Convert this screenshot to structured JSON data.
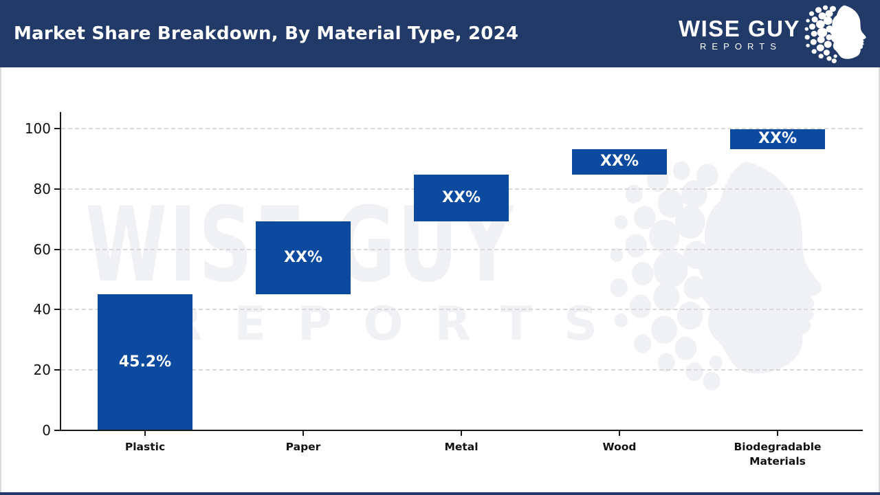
{
  "header": {
    "bg": "#223a67",
    "title": "Market Share Breakdown, By Material Type, 2024",
    "logo": {
      "line1": "WISE GUY",
      "line2": "REPORTS"
    }
  },
  "watermark": {
    "line1": "WISE GUY",
    "line2": "REPORTS",
    "color": "#f0f1f4"
  },
  "footer": {
    "bg": "#223a67"
  },
  "chart_data": {
    "type": "bar",
    "variant": "waterfall-floating-bars",
    "title": "Market Share Breakdown, By Material Type, 2024",
    "categories": [
      "Plastic",
      "Paper",
      "Metal",
      "Wood",
      "Biodegradable Materials"
    ],
    "series": [
      {
        "name": "Market share (%)",
        "segments": [
          {
            "category": "Plastic",
            "start": 0,
            "end": 45.2,
            "label": "45.2%"
          },
          {
            "category": "Paper",
            "start": 45.2,
            "end": 69.3,
            "label": "XX%"
          },
          {
            "category": "Metal",
            "start": 69.3,
            "end": 84.8,
            "label": "XX%"
          },
          {
            "category": "Wood",
            "start": 84.8,
            "end": 93.2,
            "label": "XX%"
          },
          {
            "category": "Biodegradable Materials",
            "start": 93.2,
            "end": 99.8,
            "label": "XX%"
          }
        ]
      }
    ],
    "xlabel": "",
    "ylabel": "",
    "ylim": [
      0,
      105
    ],
    "yticks": [
      0,
      20,
      40,
      60,
      80,
      100
    ],
    "grid": "horizontal-dashed",
    "legend": "none",
    "bar_color": "#0b4a9f",
    "bar_label_color": "#ffffff",
    "axis_color": "#1a1a1a",
    "gridline_color": "#d9d9d9"
  }
}
